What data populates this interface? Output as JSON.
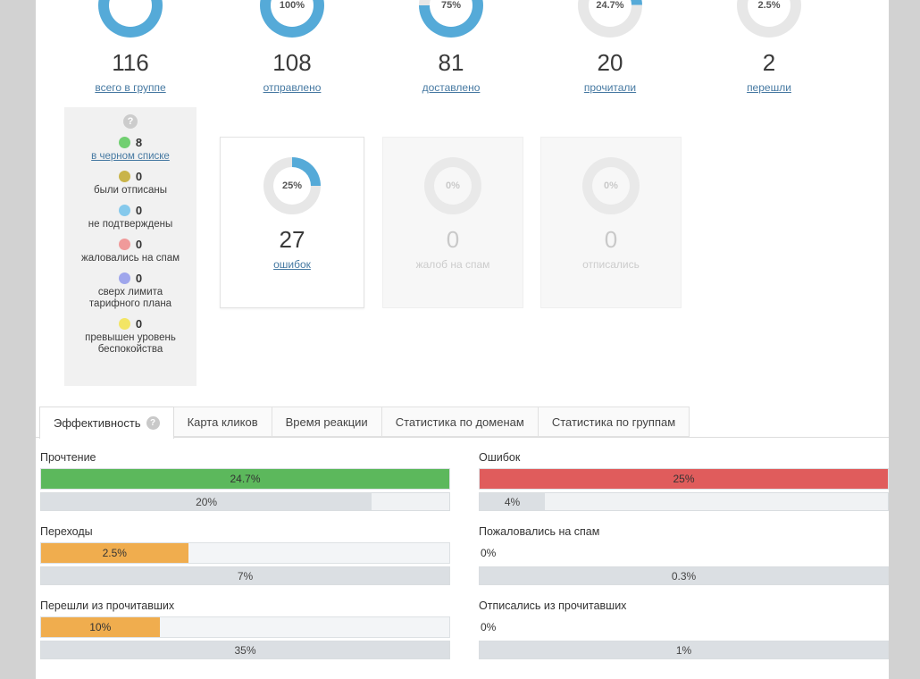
{
  "colors": {
    "donut_blue": "#55aad8",
    "donut_track": "#e7e7e7",
    "donut_track_disabled": "#e9e9e9",
    "dot_green": "#71cf71",
    "dot_olive": "#c9b44a",
    "dot_blue": "#85c9ec",
    "dot_pink": "#f09a9a",
    "dot_purple": "#9fa6ec",
    "dot_yellow": "#f3e565"
  },
  "top_cards": [
    {
      "percent": "",
      "value": "116",
      "label": "всего в группе",
      "pct": 100
    },
    {
      "percent": "100%",
      "value": "108",
      "label": "отправлено",
      "pct": 100
    },
    {
      "percent": "75%",
      "value": "81",
      "label": "доставлено",
      "pct": 75
    },
    {
      "percent": "24.7%",
      "value": "20",
      "label": "прочитали",
      "pct": 24.7
    },
    {
      "percent": "2.5%",
      "value": "2",
      "label": "перешли",
      "pct": 2.5
    }
  ],
  "sidebar": {
    "help": "?",
    "items": [
      {
        "value": "8",
        "label": "в черном списке"
      },
      {
        "value": "0",
        "label": "были отписаны"
      },
      {
        "value": "0",
        "label": "не подтверждены"
      },
      {
        "value": "0",
        "label": "жаловались на спам"
      },
      {
        "value": "0",
        "label": "сверх лимита тарифного плана"
      },
      {
        "value": "0",
        "label": "превышен уровень беспокойства"
      }
    ]
  },
  "mid_cards": [
    {
      "percent": "25%",
      "value": "27",
      "label": "ошибок",
      "pct": 25
    },
    {
      "percent": "0%",
      "value": "0",
      "label": "жалоб на спам",
      "pct": 0
    },
    {
      "percent": "0%",
      "value": "0",
      "label": "отписались",
      "pct": 0
    }
  ],
  "tabs": {
    "help": "?",
    "items": [
      {
        "label": "Эффективность"
      },
      {
        "label": "Карта кликов"
      },
      {
        "label": "Время реакции"
      },
      {
        "label": "Статистика по доменам"
      },
      {
        "label": "Статистика по группам"
      }
    ]
  },
  "metrics": {
    "left": [
      {
        "title": "Прочтение",
        "bar_label": "24.7%",
        "bar_pct": 100,
        "avg_label": "20%",
        "avg_pct": 81
      },
      {
        "title": "Переходы",
        "bar_label": "2.5%",
        "bar_pct": 36,
        "avg_label": "7%",
        "avg_pct": 100
      },
      {
        "title": "Перешли из прочитавших",
        "bar_label": "10%",
        "bar_pct": 29,
        "avg_label": "35%",
        "avg_pct": 100
      }
    ],
    "right": [
      {
        "title": "Ошибок",
        "bar_label": "25%",
        "bar_pct": 100,
        "avg_label": "4%",
        "avg_pct": 16
      },
      {
        "title": "Пожаловались на спам",
        "bar_label": "0%",
        "bar_pct": 0,
        "avg_label": "0.3%",
        "avg_pct": 100
      },
      {
        "title": "Отписались из прочитавших",
        "bar_label": "0%",
        "bar_pct": 0,
        "avg_label": "1%",
        "avg_pct": 100
      }
    ]
  }
}
